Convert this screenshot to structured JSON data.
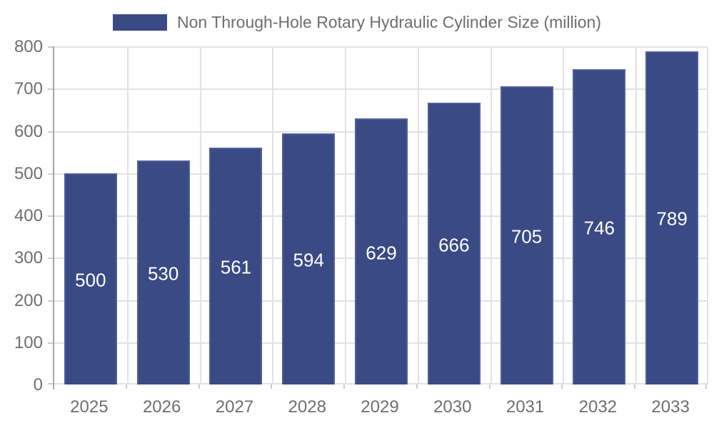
{
  "legend": {
    "label": "Non Through-Hole Rotary Hydraulic Cylinder Size (million)"
  },
  "chart_data": {
    "type": "bar",
    "title": "Non Through-Hole Rotary Hydraulic Cylinder Size (million)",
    "categories": [
      "2025",
      "2026",
      "2027",
      "2028",
      "2029",
      "2030",
      "2031",
      "2032",
      "2033"
    ],
    "values": [
      500,
      530,
      561,
      594,
      629,
      666,
      705,
      746,
      789
    ],
    "xlabel": "",
    "ylabel": "",
    "ylim": [
      0,
      800
    ],
    "ytick_interval": 100,
    "ytick_labels": [
      "0",
      "100",
      "200",
      "300",
      "400",
      "500",
      "600",
      "700",
      "800"
    ],
    "grid": "both",
    "legend_position": "top-center",
    "value_labels": "inside-center"
  },
  "colors": {
    "bar": "#3A4A84",
    "bar_edge": "#4F5F99",
    "grid_line": "#E2E2E2",
    "axis_line": "#A6A6A6",
    "tick_mark": "#CCCCCC",
    "axis_text": "#6E6E6E",
    "legend_text": "#6E6E6E",
    "bar_value_text": "#FFFFFF",
    "background": "#FFFFFF"
  }
}
